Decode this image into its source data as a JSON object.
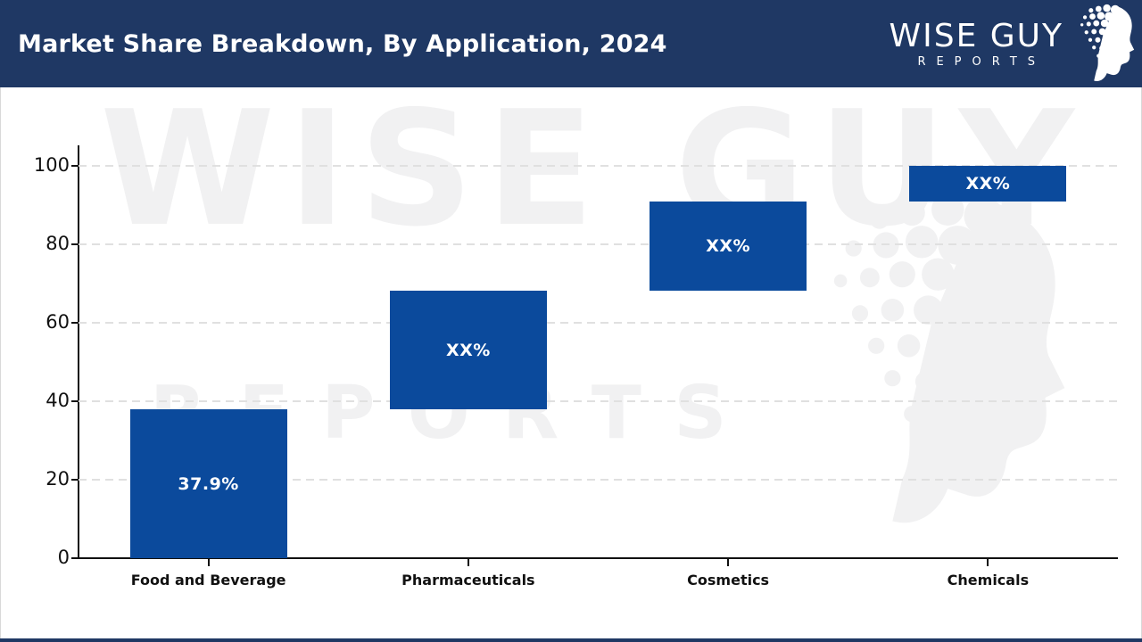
{
  "theme": {
    "navy": "#1F3864",
    "bar_blue": "#0B4A9C",
    "watermark_gray": "#F1F1F2",
    "grid_gray": "#E0E0E0",
    "axis_black": "#111111"
  },
  "header": {
    "title": "Market Share Breakdown, By Application, 2024",
    "logo_line1": "WISE GUY",
    "logo_line2": "REPORTS"
  },
  "watermark": {
    "line1": "WISE GUY",
    "line2": "R E P O R T S"
  },
  "chart_data": {
    "type": "bar",
    "subtype": "floating-waterfall",
    "title": "Market Share Breakdown, By Application, 2024",
    "categories": [
      "Food and Beverage",
      "Pharmaceuticals",
      "Cosmetics",
      "Chemicals"
    ],
    "segments": [
      {
        "category": "Food and Beverage",
        "start": 0,
        "end": 37.9,
        "value": 37.9,
        "label": "37.9%"
      },
      {
        "category": "Pharmaceuticals",
        "start": 37.9,
        "end": 68.1,
        "value": 30.2,
        "label": "XX%"
      },
      {
        "category": "Cosmetics",
        "start": 68.1,
        "end": 90.9,
        "value": 22.8,
        "label": "XX%"
      },
      {
        "category": "Chemicals",
        "start": 90.9,
        "end": 100,
        "value": 9.1,
        "label": "XX%"
      }
    ],
    "y_ticks": [
      0,
      20,
      40,
      60,
      80,
      100
    ],
    "ylim": [
      0,
      105
    ],
    "xlabel": "",
    "ylabel": "",
    "grid": "horizontal-dashed",
    "legend": "none",
    "bar_color": "#0B4A9C",
    "bar_label_color": "#FFFFFF"
  }
}
